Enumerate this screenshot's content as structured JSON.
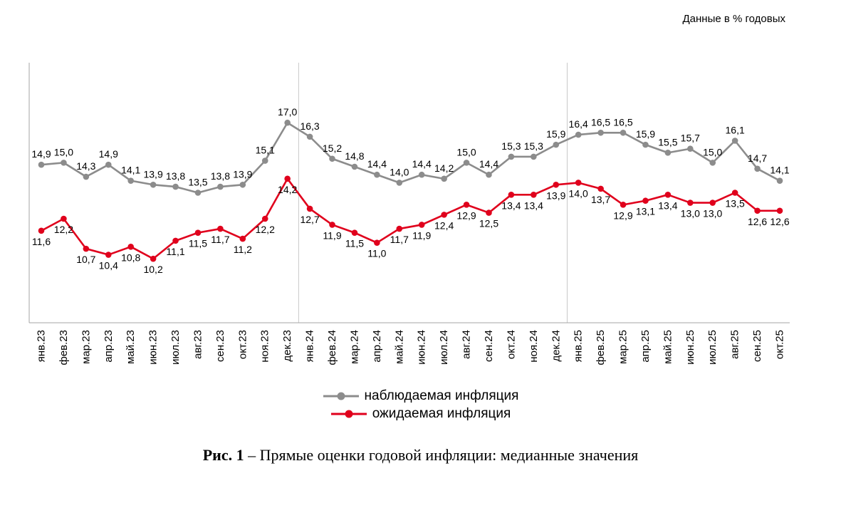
{
  "note": "Данные в % годовых",
  "legend": {
    "items": [
      {
        "id": "observed",
        "label": "наблюдаемая инфляция",
        "color": "#8c8c8c"
      },
      {
        "id": "expected",
        "label": "ожидаемая инфляция",
        "color": "#e0001c"
      }
    ]
  },
  "caption": {
    "figure_label": "Рис. 1",
    "text": " – Прямые оценки годовой инфляции: медианные значения"
  },
  "chart_data": {
    "type": "line",
    "title": "",
    "xlabel": "",
    "ylabel": "",
    "units_note": "Данные в % годовых",
    "grid": false,
    "legend_position": "bottom",
    "ylim": [
      7,
      20
    ],
    "decimal_separator": ",",
    "year_separators_after": [
      "дек.23",
      "дек.24"
    ],
    "categories": [
      "янв.23",
      "фев.23",
      "мар.23",
      "апр.23",
      "май.23",
      "июн.23",
      "июл.23",
      "авг.23",
      "сен.23",
      "окт.23",
      "ноя.23",
      "дек.23",
      "янв.24",
      "фев.24",
      "мар.24",
      "апр.24",
      "май.24",
      "июн.24",
      "июл.24",
      "авг.24",
      "сен.24",
      "окт.24",
      "ноя.24",
      "дек.24",
      "янв.25",
      "фев.25",
      "мар.25",
      "апр.25",
      "май.25",
      "июн.25",
      "июл.25",
      "авг.25",
      "сен.25",
      "окт.25"
    ],
    "series": [
      {
        "id": "observed",
        "name": "наблюдаемая инфляция",
        "color": "#8c8c8c",
        "label_position": "above",
        "values": [
          14.9,
          15.0,
          14.3,
          14.9,
          14.1,
          13.9,
          13.8,
          13.5,
          13.8,
          13.9,
          15.1,
          17.0,
          16.3,
          15.2,
          14.8,
          14.4,
          14.0,
          14.4,
          14.2,
          15.0,
          14.4,
          15.3,
          15.3,
          15.9,
          16.4,
          16.5,
          16.5,
          15.9,
          15.5,
          15.7,
          15.0,
          16.1,
          14.7,
          14.1
        ]
      },
      {
        "id": "expected",
        "name": "ожидаемая инфляция",
        "color": "#e0001c",
        "label_position": "below",
        "values": [
          11.6,
          12.2,
          10.7,
          10.4,
          10.8,
          10.2,
          11.1,
          11.5,
          11.7,
          11.2,
          12.2,
          14.2,
          12.7,
          11.9,
          11.5,
          11.0,
          11.7,
          11.9,
          12.4,
          12.9,
          12.5,
          13.4,
          13.4,
          13.9,
          14.0,
          13.7,
          12.9,
          13.1,
          13.4,
          13.0,
          13.0,
          13.5,
          12.6,
          12.6
        ]
      }
    ]
  }
}
